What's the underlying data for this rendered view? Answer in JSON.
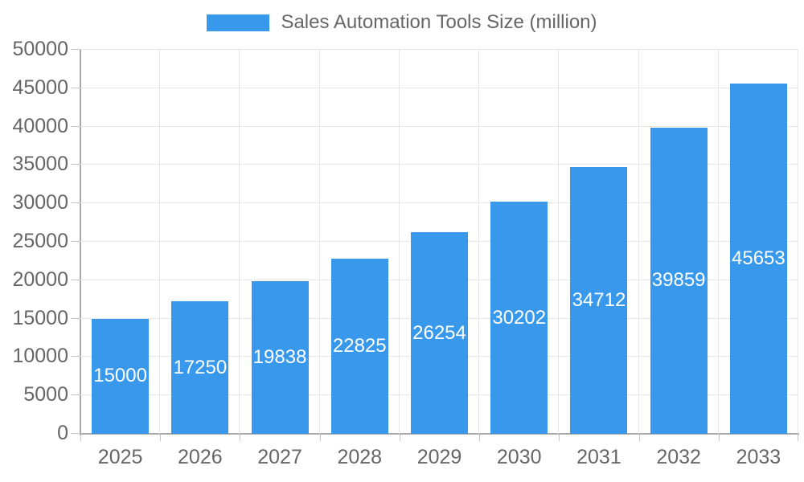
{
  "chart_data": {
    "type": "bar",
    "title": "Sales Automation Tools Size (million)",
    "legend_label": "Sales Automation Tools Size (million)",
    "legend_position": "top",
    "categories": [
      "2025",
      "2026",
      "2027",
      "2028",
      "2029",
      "2030",
      "2031",
      "2032",
      "2033"
    ],
    "values": [
      15000,
      17250,
      19838,
      22825,
      26254,
      30202,
      34712,
      39859,
      45653
    ],
    "value_labels": [
      "15000",
      "17250",
      "19838",
      "22825",
      "26254",
      "30202",
      "34712",
      "39859",
      "45653"
    ],
    "xlabel": "",
    "ylabel": "",
    "ylim": [
      0,
      50000
    ],
    "ytick_step": 5000,
    "ytick_labels": [
      "0",
      "5000",
      "10000",
      "15000",
      "20000",
      "25000",
      "30000",
      "35000",
      "40000",
      "45000",
      "50000"
    ],
    "grid": true,
    "value_label_position": "center-inside"
  },
  "colors": {
    "bar": "#3899EC",
    "value_label": "#ffffff",
    "axis_label": "#666666",
    "legend_text": "#666666",
    "gridline": "#e6e6e6",
    "axis_line": "#a8a8a8",
    "tick": "#c6c6c6",
    "background": "#ffffff"
  }
}
